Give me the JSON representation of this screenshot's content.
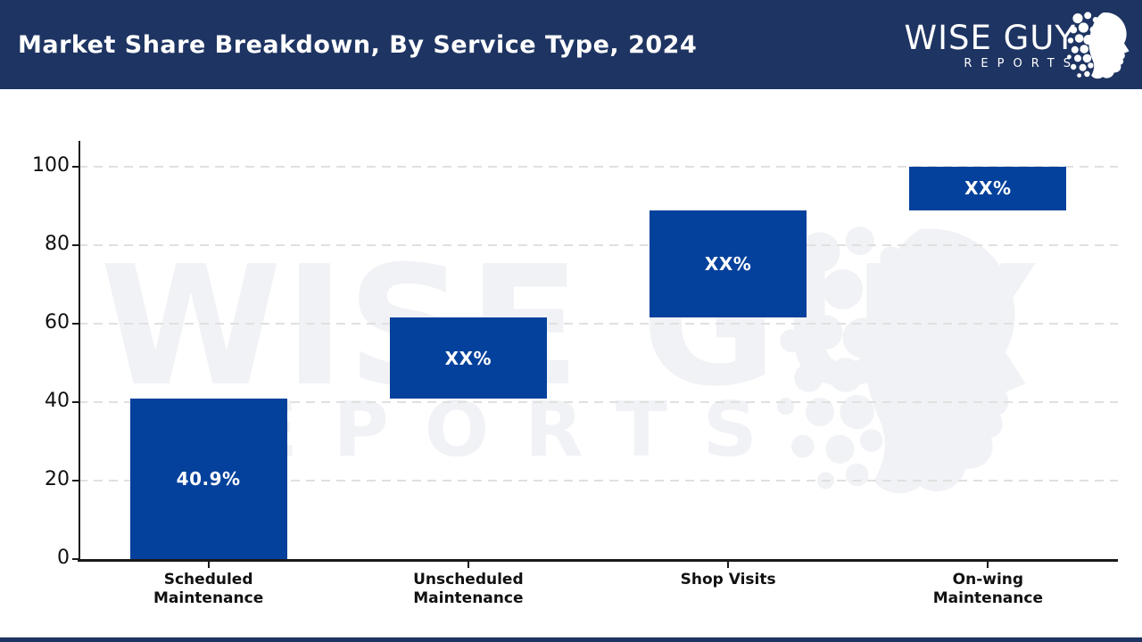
{
  "header": {
    "title": "Market Share Breakdown, By Service Type, 2024",
    "logo": {
      "name": "WISE GUY",
      "sub": "REPORTS"
    }
  },
  "watermark": {
    "name": "WISE GUY",
    "sub": "REPORTS"
  },
  "chart_data": {
    "type": "bar",
    "subtype": "waterfall",
    "title": "Market Share Breakdown, By Service Type, 2024",
    "unit": "%",
    "categories": [
      "Scheduled Maintenance",
      "Unscheduled Maintenance",
      "Shop Visits",
      "On-wing Maintenance"
    ],
    "segments": [
      {
        "category": "Scheduled Maintenance",
        "category_lines": [
          "Scheduled",
          "Maintenance"
        ],
        "start": 0,
        "end": 40.9,
        "label": "40.9%"
      },
      {
        "category": "Unscheduled Maintenance",
        "category_lines": [
          "Unscheduled",
          "Maintenance"
        ],
        "start": 40.9,
        "end": 61.5,
        "label": "XX%"
      },
      {
        "category": "Shop Visits",
        "category_lines": [
          "Shop Visits"
        ],
        "start": 61.5,
        "end": 88.9,
        "label": "XX%"
      },
      {
        "category": "On-wing Maintenance",
        "category_lines": [
          "On-wing",
          "Maintenance"
        ],
        "start": 88.9,
        "end": 100,
        "label": "XX%"
      }
    ],
    "yticks": [
      0,
      20,
      40,
      60,
      80,
      100
    ],
    "ylim": [
      0,
      105
    ],
    "grid": {
      "horizontal": true,
      "style": "dashed"
    },
    "legend": null
  },
  "colors": {
    "header_bg": "#1e3462",
    "bar": "#04419c",
    "bar_label": "#ffffff",
    "grid": "#e0e0e0",
    "axis": "#1a1a1a",
    "watermark": "#f1f2f5",
    "title": "#ffffff"
  }
}
